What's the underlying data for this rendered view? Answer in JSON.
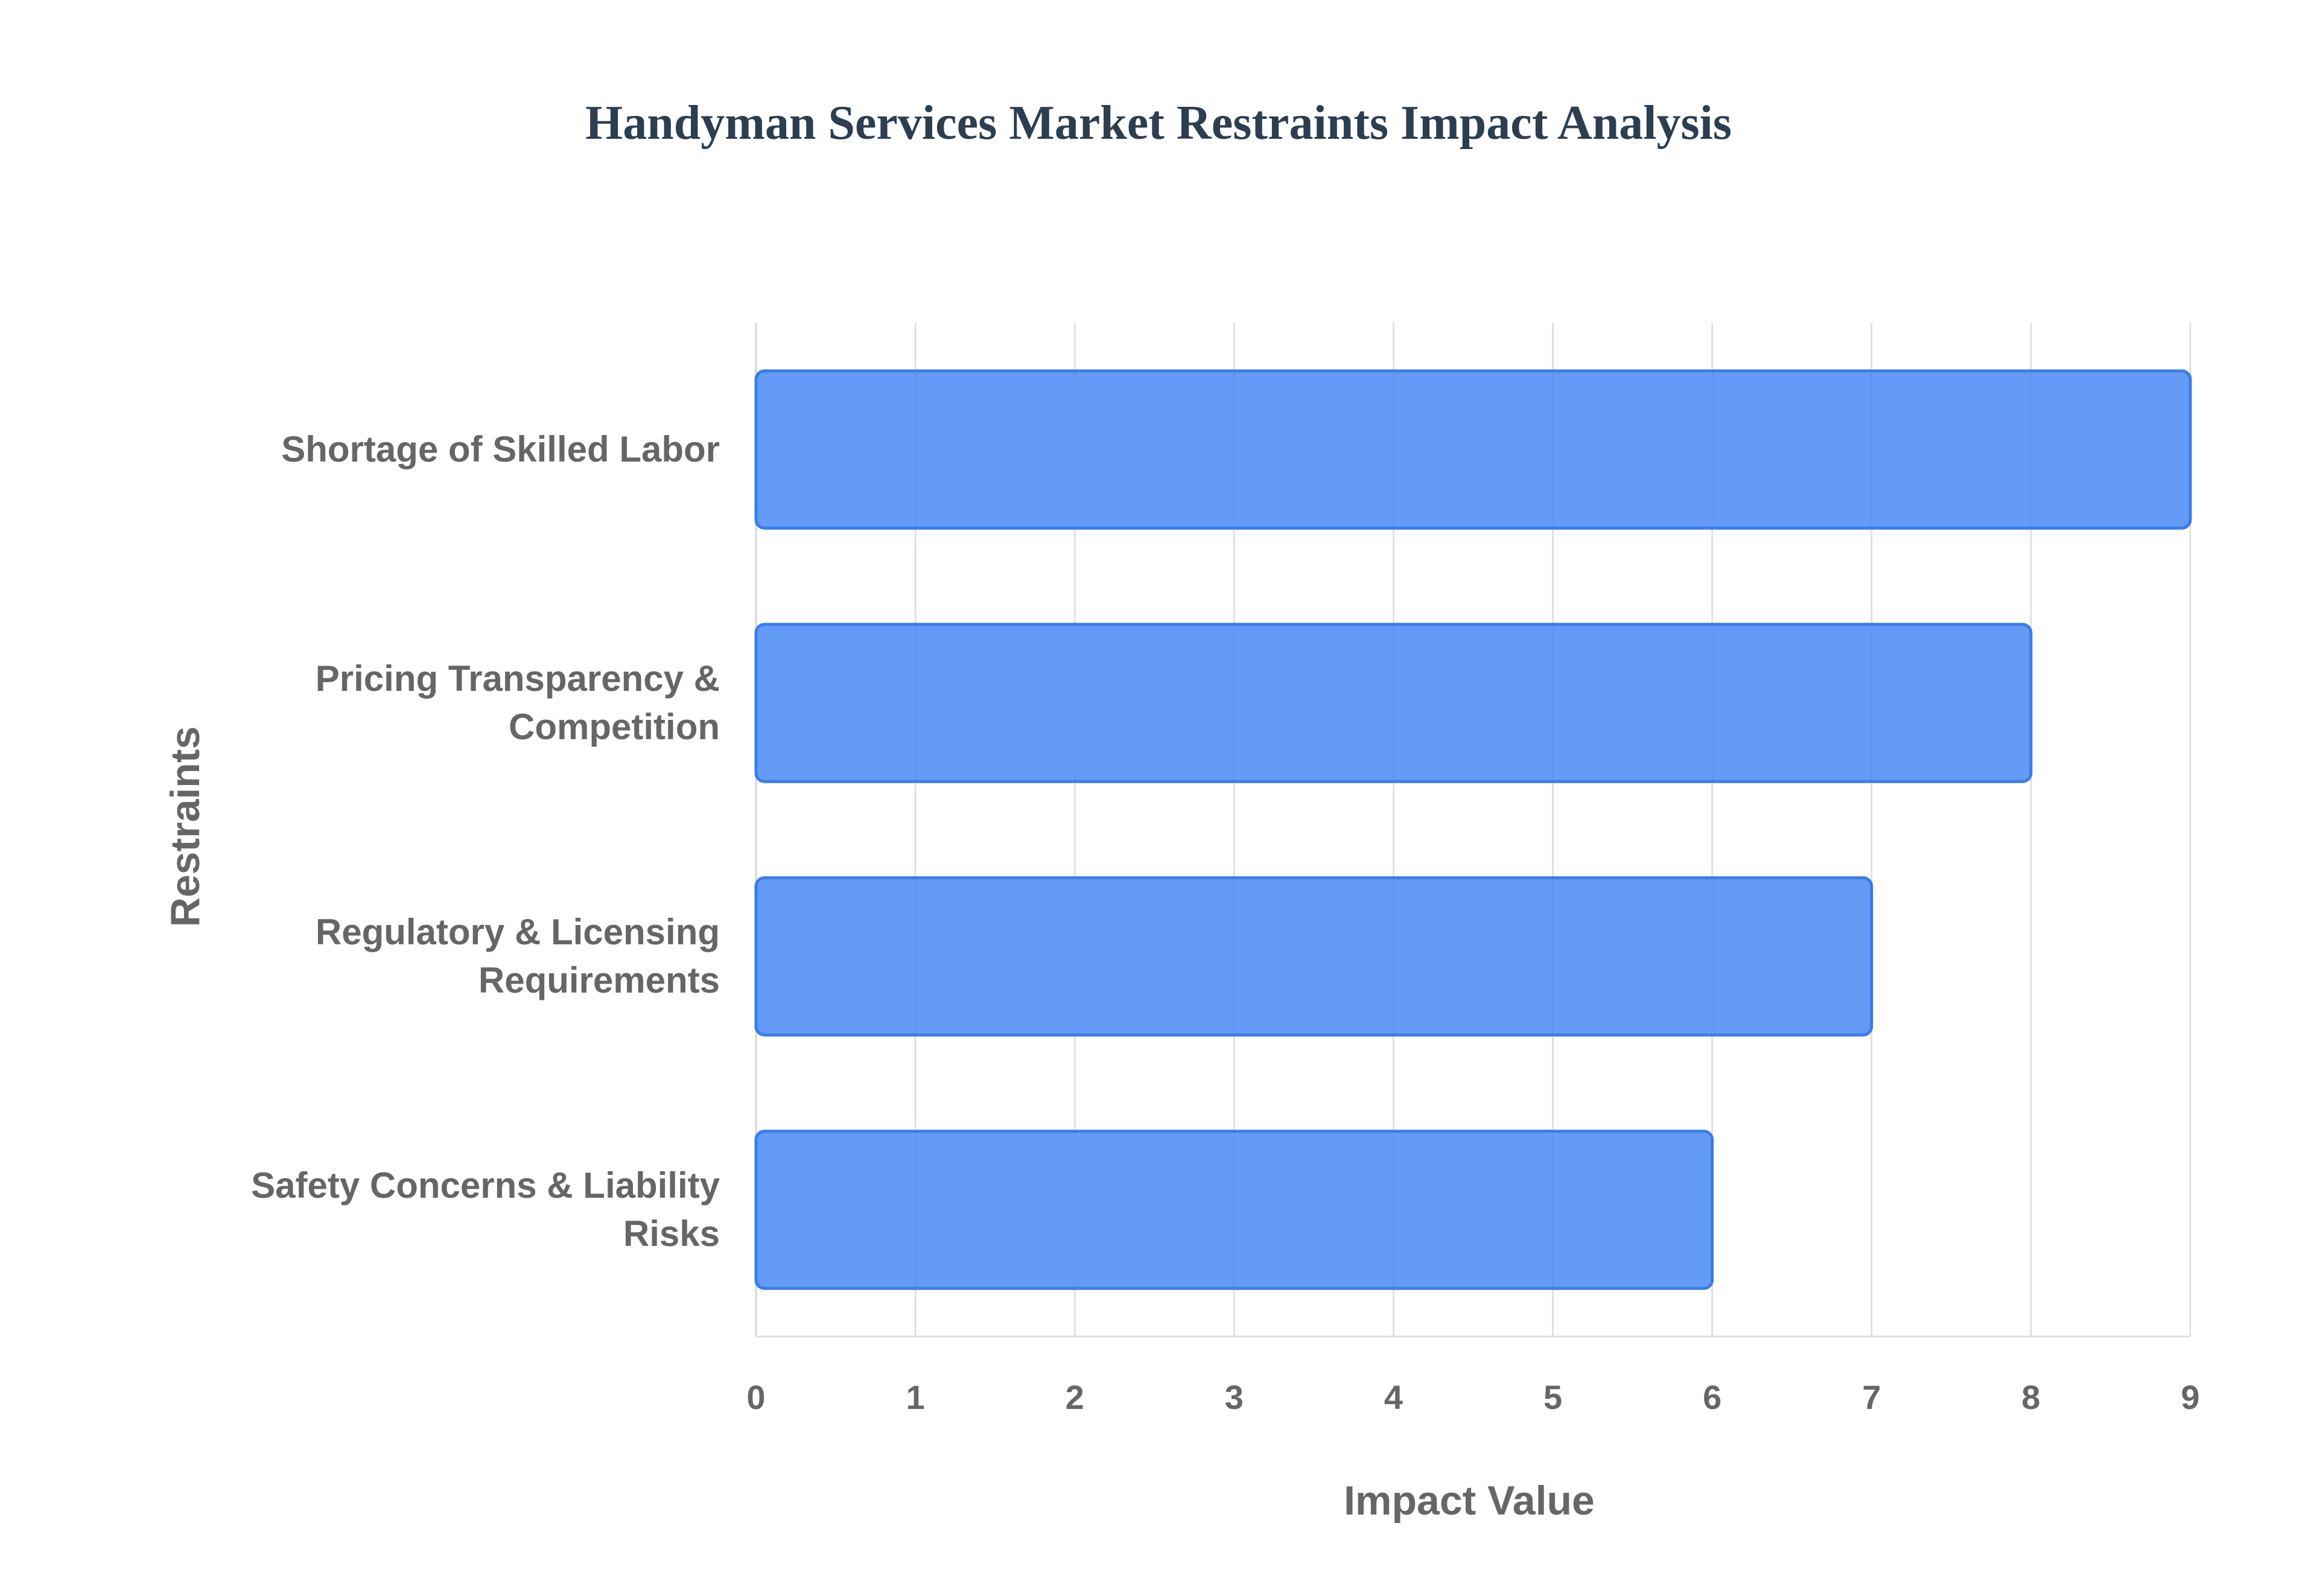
{
  "chart_data": {
    "type": "bar",
    "orientation": "horizontal",
    "title": "Handyman Services Market Restraints Impact Analysis",
    "xlabel": "Impact Value",
    "ylabel": "Restraints",
    "categories": [
      [
        "Shortage of Skilled Labor"
      ],
      [
        "Pricing Transparency &",
        "Competition"
      ],
      [
        "Regulatory & Licensing",
        "Requirements"
      ],
      [
        "Safety Concerns & Liability",
        "Risks"
      ]
    ],
    "values": [
      9,
      8,
      7,
      6
    ],
    "xlim": [
      0,
      9
    ],
    "xticks": [
      "0",
      "1",
      "2",
      "3",
      "4",
      "5",
      "6",
      "7",
      "8",
      "9"
    ],
    "grid": true,
    "legend": "none",
    "colors": {
      "bar_fill": "#4285f4",
      "bar_fill_opacity": 0.82,
      "bar_stroke": "#3b7de8",
      "title": "#2c3e50",
      "labels": "#666666",
      "grid": "#e0e0e0"
    }
  }
}
